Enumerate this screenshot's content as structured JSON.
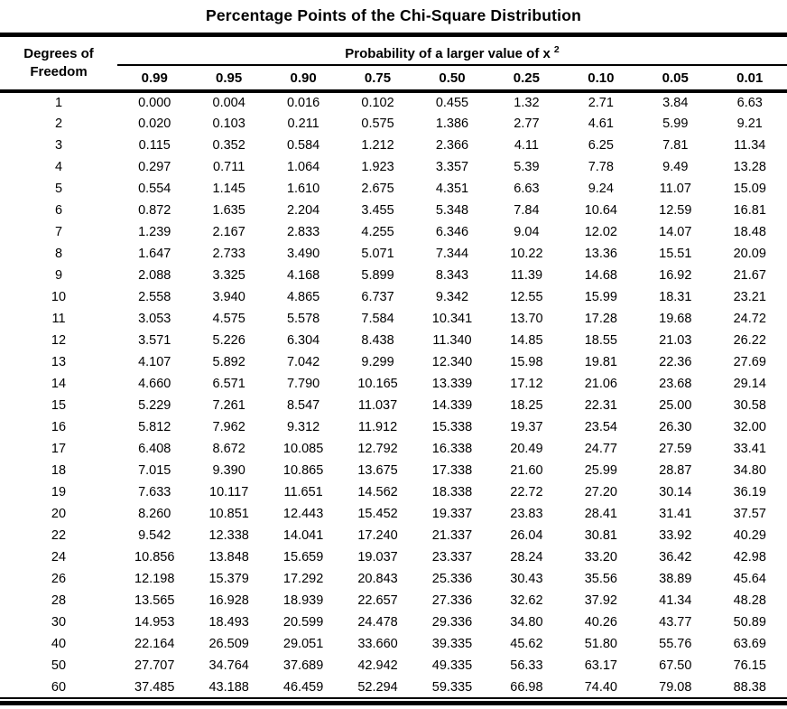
{
  "title": "Percentage Points of the Chi-Square Distribution",
  "table": {
    "df_header_line1": "Degrees of",
    "df_header_line2": "Freedom",
    "prob_header_text": "Probability of a larger value of x",
    "prob_header_sup": "2",
    "columns": [
      "0.99",
      "0.95",
      "0.90",
      "0.75",
      "0.50",
      "0.25",
      "0.10",
      "0.05",
      "0.01"
    ],
    "rows": [
      {
        "df": "1",
        "values": [
          "0.000",
          "0.004",
          "0.016",
          "0.102",
          "0.455",
          "1.32",
          "2.71",
          "3.84",
          "6.63"
        ]
      },
      {
        "df": "2",
        "values": [
          "0.020",
          "0.103",
          "0.211",
          "0.575",
          "1.386",
          "2.77",
          "4.61",
          "5.99",
          "9.21"
        ]
      },
      {
        "df": "3",
        "values": [
          "0.115",
          "0.352",
          "0.584",
          "1.212",
          "2.366",
          "4.11",
          "6.25",
          "7.81",
          "11.34"
        ]
      },
      {
        "df": "4",
        "values": [
          "0.297",
          "0.711",
          "1.064",
          "1.923",
          "3.357",
          "5.39",
          "7.78",
          "9.49",
          "13.28"
        ]
      },
      {
        "df": "5",
        "values": [
          "0.554",
          "1.145",
          "1.610",
          "2.675",
          "4.351",
          "6.63",
          "9.24",
          "11.07",
          "15.09"
        ]
      },
      {
        "df": "6",
        "values": [
          "0.872",
          "1.635",
          "2.204",
          "3.455",
          "5.348",
          "7.84",
          "10.64",
          "12.59",
          "16.81"
        ]
      },
      {
        "df": "7",
        "values": [
          "1.239",
          "2.167",
          "2.833",
          "4.255",
          "6.346",
          "9.04",
          "12.02",
          "14.07",
          "18.48"
        ]
      },
      {
        "df": "8",
        "values": [
          "1.647",
          "2.733",
          "3.490",
          "5.071",
          "7.344",
          "10.22",
          "13.36",
          "15.51",
          "20.09"
        ]
      },
      {
        "df": "9",
        "values": [
          "2.088",
          "3.325",
          "4.168",
          "5.899",
          "8.343",
          "11.39",
          "14.68",
          "16.92",
          "21.67"
        ]
      },
      {
        "df": "10",
        "values": [
          "2.558",
          "3.940",
          "4.865",
          "6.737",
          "9.342",
          "12.55",
          "15.99",
          "18.31",
          "23.21"
        ]
      },
      {
        "df": "11",
        "values": [
          "3.053",
          "4.575",
          "5.578",
          "7.584",
          "10.341",
          "13.70",
          "17.28",
          "19.68",
          "24.72"
        ]
      },
      {
        "df": "12",
        "values": [
          "3.571",
          "5.226",
          "6.304",
          "8.438",
          "11.340",
          "14.85",
          "18.55",
          "21.03",
          "26.22"
        ]
      },
      {
        "df": "13",
        "values": [
          "4.107",
          "5.892",
          "7.042",
          "9.299",
          "12.340",
          "15.98",
          "19.81",
          "22.36",
          "27.69"
        ]
      },
      {
        "df": "14",
        "values": [
          "4.660",
          "6.571",
          "7.790",
          "10.165",
          "13.339",
          "17.12",
          "21.06",
          "23.68",
          "29.14"
        ]
      },
      {
        "df": "15",
        "values": [
          "5.229",
          "7.261",
          "8.547",
          "11.037",
          "14.339",
          "18.25",
          "22.31",
          "25.00",
          "30.58"
        ]
      },
      {
        "df": "16",
        "values": [
          "5.812",
          "7.962",
          "9.312",
          "11.912",
          "15.338",
          "19.37",
          "23.54",
          "26.30",
          "32.00"
        ]
      },
      {
        "df": "17",
        "values": [
          "6.408",
          "8.672",
          "10.085",
          "12.792",
          "16.338",
          "20.49",
          "24.77",
          "27.59",
          "33.41"
        ]
      },
      {
        "df": "18",
        "values": [
          "7.015",
          "9.390",
          "10.865",
          "13.675",
          "17.338",
          "21.60",
          "25.99",
          "28.87",
          "34.80"
        ]
      },
      {
        "df": "19",
        "values": [
          "7.633",
          "10.117",
          "11.651",
          "14.562",
          "18.338",
          "22.72",
          "27.20",
          "30.14",
          "36.19"
        ]
      },
      {
        "df": "20",
        "values": [
          "8.260",
          "10.851",
          "12.443",
          "15.452",
          "19.337",
          "23.83",
          "28.41",
          "31.41",
          "37.57"
        ]
      },
      {
        "df": "22",
        "values": [
          "9.542",
          "12.338",
          "14.041",
          "17.240",
          "21.337",
          "26.04",
          "30.81",
          "33.92",
          "40.29"
        ]
      },
      {
        "df": "24",
        "values": [
          "10.856",
          "13.848",
          "15.659",
          "19.037",
          "23.337",
          "28.24",
          "33.20",
          "36.42",
          "42.98"
        ]
      },
      {
        "df": "26",
        "values": [
          "12.198",
          "15.379",
          "17.292",
          "20.843",
          "25.336",
          "30.43",
          "35.56",
          "38.89",
          "45.64"
        ]
      },
      {
        "df": "28",
        "values": [
          "13.565",
          "16.928",
          "18.939",
          "22.657",
          "27.336",
          "32.62",
          "37.92",
          "41.34",
          "48.28"
        ]
      },
      {
        "df": "30",
        "values": [
          "14.953",
          "18.493",
          "20.599",
          "24.478",
          "29.336",
          "34.80",
          "40.26",
          "43.77",
          "50.89"
        ]
      },
      {
        "df": "40",
        "values": [
          "22.164",
          "26.509",
          "29.051",
          "33.660",
          "39.335",
          "45.62",
          "51.80",
          "55.76",
          "63.69"
        ]
      },
      {
        "df": "50",
        "values": [
          "27.707",
          "34.764",
          "37.689",
          "42.942",
          "49.335",
          "56.33",
          "63.17",
          "67.50",
          "76.15"
        ]
      },
      {
        "df": "60",
        "values": [
          "37.485",
          "43.188",
          "46.459",
          "52.294",
          "59.335",
          "66.98",
          "74.40",
          "79.08",
          "88.38"
        ]
      }
    ]
  }
}
